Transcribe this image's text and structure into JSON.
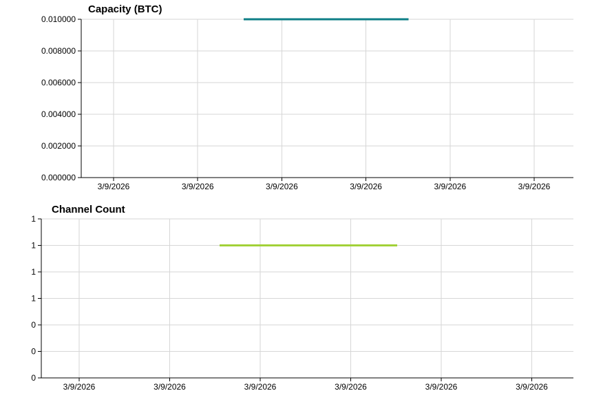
{
  "page": {
    "background": "#ffffff"
  },
  "colors": {
    "axis": "#000000",
    "grid": "#d6d6d6",
    "text": "#000000",
    "capacity_line": "#0e7f87",
    "channel_line": "#a2d138"
  },
  "chart_data": [
    {
      "type": "line",
      "title": "Capacity (BTC)",
      "xlabel": "",
      "ylabel": "",
      "ylim": [
        0,
        0.01
      ],
      "grid": true,
      "legend_position": "none",
      "y_tick_labels": [
        "0.010000",
        "0.008000",
        "0.006000",
        "0.004000",
        "0.002000",
        "0.000000"
      ],
      "x_tick_labels": [
        "3/9/2026",
        "3/9/2026",
        "3/9/2026",
        "3/9/2026",
        "3/9/2026",
        "3/9/2026"
      ],
      "series": [
        {
          "name": "Capacity (BTC)",
          "color": "#0e7f87",
          "value": 0.01,
          "x_start_frac": 0.33,
          "x_end_frac": 0.665
        }
      ]
    },
    {
      "type": "line",
      "title": "Channel Count",
      "xlabel": "",
      "ylabel": "",
      "ylim": [
        0,
        1.2
      ],
      "grid": true,
      "legend_position": "none",
      "y_tick_labels": [
        "1",
        "1",
        "1",
        "1",
        "0",
        "0",
        "0"
      ],
      "x_tick_labels": [
        "3/9/2026",
        "3/9/2026",
        "3/9/2026",
        "3/9/2026",
        "3/9/2026",
        "3/9/2026"
      ],
      "series": [
        {
          "name": "Channel Count",
          "color": "#a2d138",
          "value": 1,
          "x_start_frac": 0.335,
          "x_end_frac": 0.669
        }
      ]
    }
  ]
}
